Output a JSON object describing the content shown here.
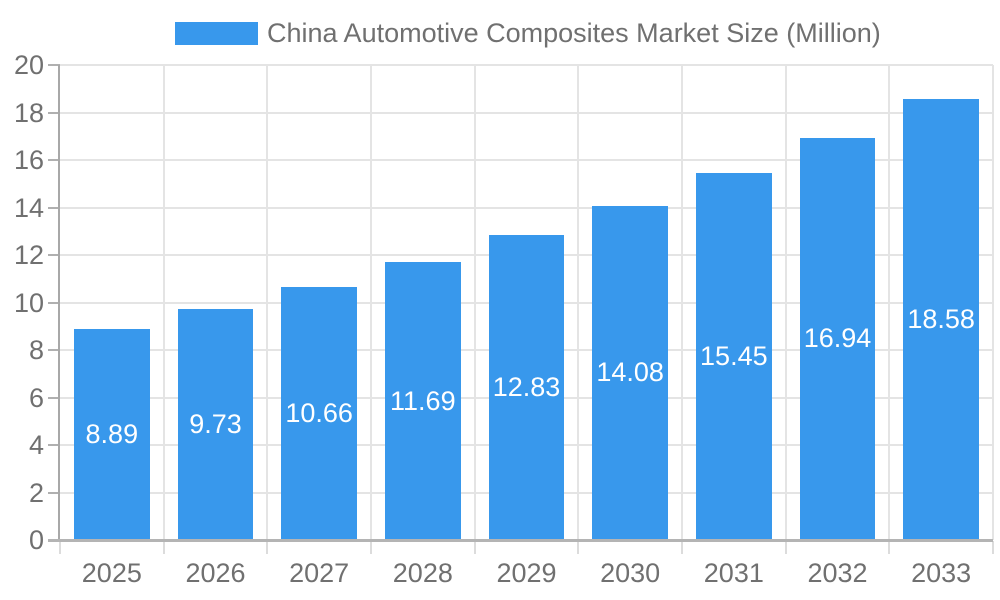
{
  "legend": {
    "position": "top",
    "items": [
      {
        "label": "China Automotive Composites Market Size (Million)",
        "color": "#3898ec"
      }
    ]
  },
  "colors": {
    "bar": "#3898ec",
    "grid": "#e4e4e4",
    "y_axis_line": "#a8a8a8",
    "x_axis_line": "#b4b4b4",
    "y_tick": "#b0b0b0",
    "x_tick": "#dcdcdc",
    "axis_text": "#707070",
    "value_label": "#ffffff",
    "background": "#ffffff"
  },
  "chart_data": {
    "type": "bar",
    "title": "China Automotive Composites Market Size (Million)",
    "categories": [
      "2025",
      "2026",
      "2027",
      "2028",
      "2029",
      "2030",
      "2031",
      "2032",
      "2033"
    ],
    "series": [
      {
        "name": "China Automotive Composites Market Size (Million)",
        "values": [
          8.89,
          9.73,
          10.66,
          11.69,
          12.83,
          14.08,
          15.45,
          16.94,
          18.58
        ]
      }
    ],
    "value_labels": [
      "8.89",
      "9.73",
      "10.66",
      "11.69",
      "12.83",
      "14.08",
      "15.45",
      "16.94",
      "18.58"
    ],
    "xlabel": "",
    "ylabel": "",
    "ylim": [
      0,
      20
    ],
    "yticks": [
      0,
      2,
      4,
      6,
      8,
      10,
      12,
      14,
      16,
      18,
      20
    ],
    "grid": true,
    "legend_position": "top"
  }
}
